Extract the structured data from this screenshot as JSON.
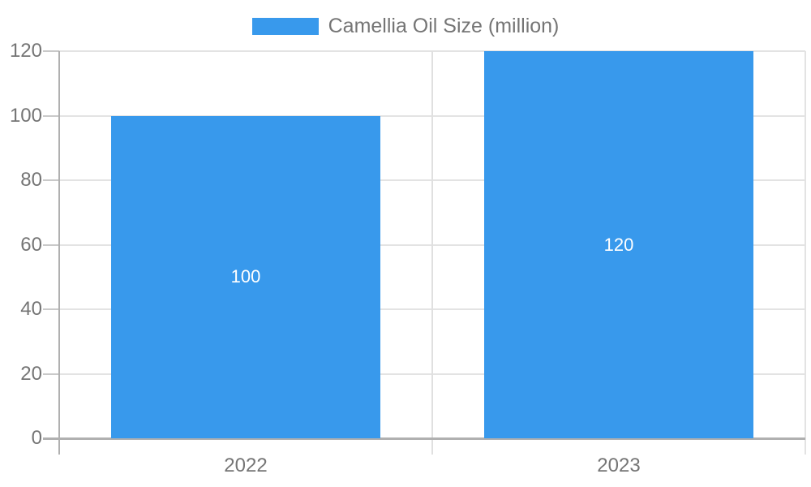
{
  "chart_data": {
    "type": "bar",
    "title": "",
    "legend": {
      "position": "top",
      "label": "Camellia Oil Size (million)"
    },
    "categories": [
      "2022",
      "2023"
    ],
    "series": [
      {
        "name": "Camellia Oil Size (million)",
        "values": [
          100,
          120
        ]
      }
    ],
    "bar_value_labels": [
      "100",
      "120"
    ],
    "ylim": [
      0,
      120
    ],
    "ytick_interval": 20,
    "ytick_labels": [
      "0",
      "20",
      "40",
      "60",
      "80",
      "100",
      "120"
    ],
    "grid": true,
    "colors": {
      "bar": "#3899EC",
      "bar_label_text": "#ffffff",
      "axis_text": "#757575",
      "legend_text": "#757575",
      "axis_line": "#b0b0b0",
      "gridline": "#e3e3e3",
      "outer_tick": "#c9c9c9",
      "boundary_tick": "#e0e0e0"
    }
  }
}
